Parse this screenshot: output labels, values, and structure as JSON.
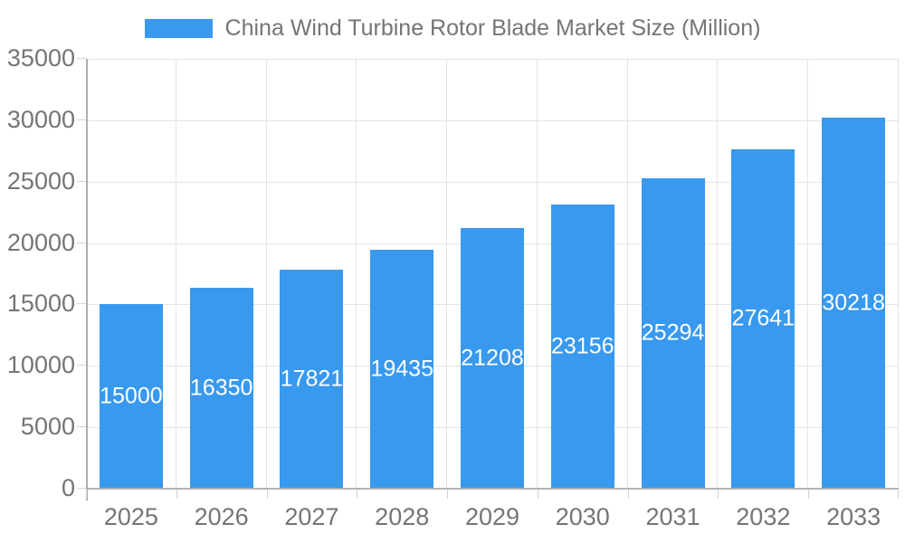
{
  "chart_data": {
    "type": "bar",
    "title": "China Wind Turbine Rotor Blade Market Size (Million)",
    "legend_position": "top",
    "categories": [
      "2025",
      "2026",
      "2027",
      "2028",
      "2029",
      "2030",
      "2031",
      "2032",
      "2033"
    ],
    "series": [
      {
        "name": "China Wind Turbine Rotor Blade Market Size (Million)",
        "values": [
          15000,
          16350,
          17821,
          19435,
          21208,
          23156,
          25294,
          27641,
          30218
        ]
      }
    ],
    "bar_value_labels": [
      "15000",
      "16350",
      "17821",
      "19435",
      "21208",
      "23156",
      "25294",
      "27641",
      "30218"
    ],
    "xlabel": "",
    "ylabel": "",
    "ylim": [
      0,
      35000
    ],
    "y_tick_labels": [
      "0",
      "5000",
      "10000",
      "15000",
      "20000",
      "25000",
      "30000",
      "35000"
    ],
    "y_tick_values": [
      0,
      5000,
      10000,
      15000,
      20000,
      25000,
      30000,
      35000
    ],
    "grid": true,
    "colors": {
      "bar": "#3899ee",
      "bar_label_text": "#ffffff",
      "axis_text": "#757575",
      "legend_text": "#757575"
    }
  }
}
